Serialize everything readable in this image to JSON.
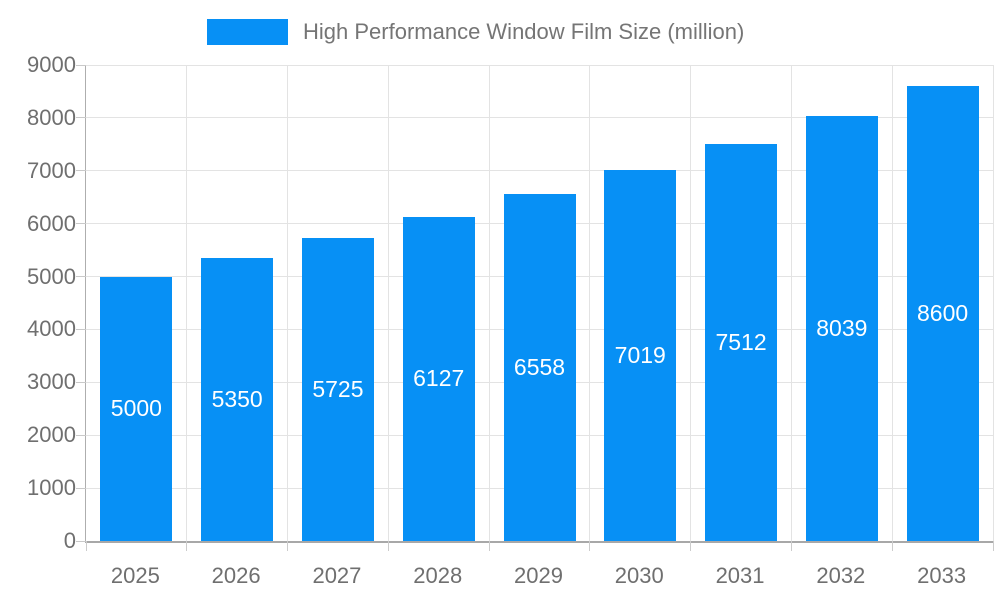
{
  "chart_data": {
    "type": "bar",
    "title": "High Performance Window Film Size (million)",
    "categories": [
      "2025",
      "2026",
      "2027",
      "2028",
      "2029",
      "2030",
      "2031",
      "2032",
      "2033"
    ],
    "values": [
      5000,
      5350,
      5725,
      6127,
      6558,
      7019,
      7512,
      8039,
      8600
    ],
    "xlabel": "",
    "ylabel": "",
    "ylim": [
      0,
      9000
    ],
    "ytick_step": 1000,
    "ytick_labels": [
      "0",
      "1000",
      "2000",
      "3000",
      "4000",
      "5000",
      "6000",
      "7000",
      "8000",
      "9000"
    ],
    "legend_position": "top",
    "grid": true,
    "bar_labels_shown": true,
    "colors": {
      "bar": "#0790f5",
      "bar_label": "#ffffff",
      "axis_text": "#6f6f6f",
      "legend_text": "#757575",
      "gridline": "#e3e3e3",
      "axis_line": "#a8a8a8"
    }
  }
}
